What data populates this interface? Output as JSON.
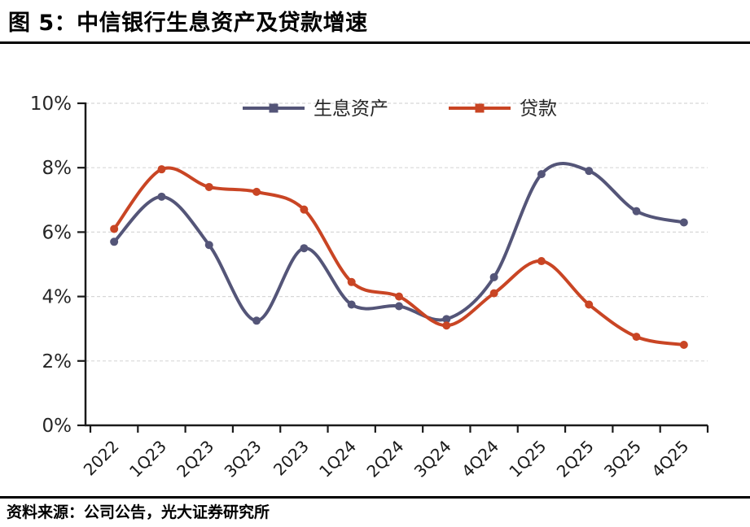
{
  "header": {
    "title": "图 5：中信银行生息资产及贷款增速"
  },
  "footer": {
    "source": "资料来源：公司公告，光大证券研究所"
  },
  "chart_data": {
    "type": "line",
    "title": "图 5：中信银行生息资产及贷款增速",
    "categories": [
      "2022",
      "1Q23",
      "2Q23",
      "3Q23",
      "2023",
      "1Q24",
      "2Q24",
      "3Q24",
      "4Q24",
      "1Q25",
      "2Q25",
      "3Q25",
      "4Q25"
    ],
    "series": [
      {
        "name": "生息资产",
        "color": "#545578",
        "marker": "circle",
        "values": [
          5.7,
          7.1,
          5.6,
          3.25,
          5.5,
          3.75,
          3.7,
          3.3,
          4.6,
          7.8,
          7.9,
          6.65,
          6.3
        ]
      },
      {
        "name": "贷款",
        "color": "#C94524",
        "marker": "circle",
        "values": [
          6.1,
          7.95,
          7.4,
          7.25,
          6.7,
          4.45,
          4.0,
          3.1,
          4.1,
          5.1,
          3.75,
          2.75,
          2.5
        ]
      }
    ],
    "ylabel": "",
    "xlabel": "",
    "ylim": [
      0,
      10
    ],
    "ytick_step": 2,
    "ytick_labels": [
      "0%",
      "2%",
      "4%",
      "6%",
      "8%",
      "10%"
    ],
    "x_label_rotation_deg": -45,
    "grid": "horizontal-dashed",
    "gridline_color": "#d8d8d8",
    "axis_color": "#1a1a1a",
    "tick_label_color": "#262626",
    "legend_position": "top-center",
    "smooth": true
  }
}
